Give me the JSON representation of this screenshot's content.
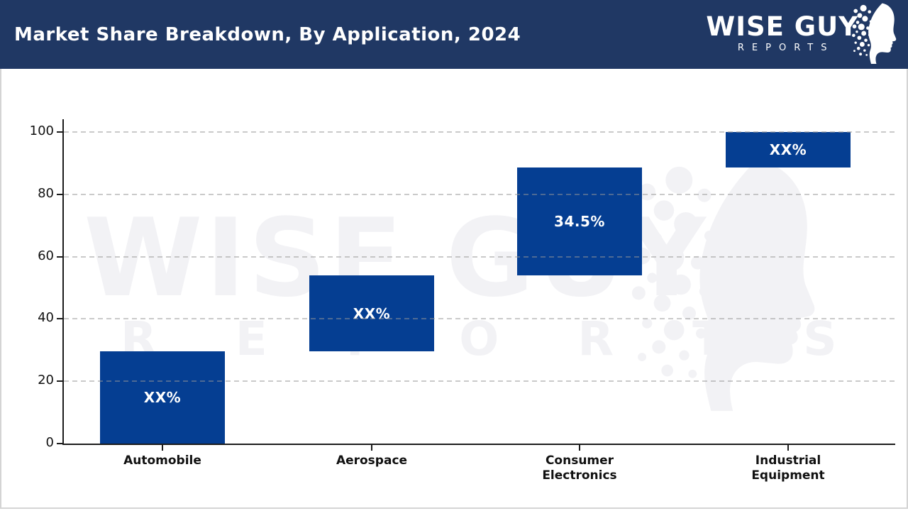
{
  "header": {
    "title": "Market Share Breakdown, By Application, 2024",
    "logo_line1": "WISE GUY",
    "logo_line2": "REPORTS"
  },
  "watermark": {
    "line1": "WISE GUY",
    "line2": "R E P O R T S"
  },
  "chart_data": {
    "type": "bar",
    "variant": "floating-waterfall",
    "title": "Market Share Breakdown, By Application, 2024",
    "categories": [
      "Automobile",
      "Aerospace",
      "Consumer Electronics",
      "Industrial Equipment"
    ],
    "segments": [
      {
        "category": "Automobile",
        "start": 0,
        "end": 29.5,
        "label": "XX%"
      },
      {
        "category": "Aerospace",
        "start": 29.5,
        "end": 54,
        "label": "XX%"
      },
      {
        "category": "Consumer Electronics",
        "start": 54,
        "end": 88.5,
        "label": "34.5%"
      },
      {
        "category": "Industrial Equipment",
        "start": 88.5,
        "end": 100,
        "label": "XX%"
      }
    ],
    "ylim": [
      0,
      100
    ],
    "yticks": [
      0,
      20,
      40,
      60,
      80,
      100
    ],
    "grid": "horizontal-dashed",
    "legend": "none",
    "bar_color": "#053e92",
    "bar_label_color": "#ffffff",
    "axis_color": "#1c1c1c",
    "header_bg": "#203864",
    "watermark_color": "#f2f2f5"
  }
}
